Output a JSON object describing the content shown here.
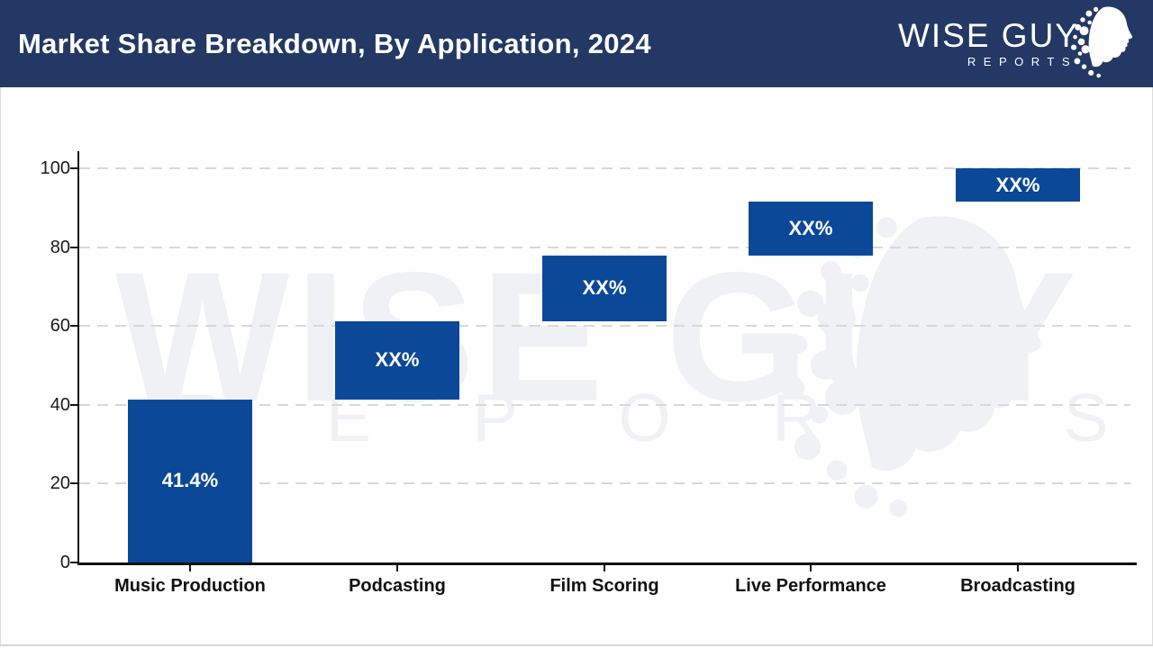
{
  "header": {
    "title": "Market Share Breakdown, By Application, 2024",
    "logo": {
      "line1": "WISE GUY",
      "line2": "REPORTS",
      "head_icon": "dotted-head-profile-icon"
    }
  },
  "watermark": {
    "line1": "WISE GUY",
    "line2": "R E P O R T S",
    "head_icon": "dotted-head-profile-watermark"
  },
  "colors": {
    "header_bg": "#233864",
    "bar": "#0c4898",
    "bar_label": "#ffffff",
    "grid": "#d8d8d8",
    "axis": "#111111",
    "watermark": "#f0f1f4"
  },
  "chart_data": {
    "type": "bar",
    "subtype": "waterfall",
    "title": "Market Share Breakdown, By Application, 2024",
    "categories": [
      "Music Production",
      "Podcasting",
      "Film Scoring",
      "Live Performance",
      "Broadcasting"
    ],
    "segments": [
      {
        "category": "Music Production",
        "start": 0,
        "end": 41.4,
        "value": 41.4,
        "label": "41.4%"
      },
      {
        "category": "Podcasting",
        "start": 41.4,
        "end": 61.2,
        "value": 19.8,
        "label": "XX%"
      },
      {
        "category": "Film Scoring",
        "start": 61.2,
        "end": 77.9,
        "value": 16.7,
        "label": "XX%"
      },
      {
        "category": "Live Performance",
        "start": 77.9,
        "end": 91.5,
        "value": 13.6,
        "label": "XX%"
      },
      {
        "category": "Broadcasting",
        "start": 91.5,
        "end": 100,
        "value": 8.5,
        "label": "XX%"
      }
    ],
    "ylim": [
      0,
      100
    ],
    "yticks": [
      0,
      20,
      40,
      60,
      80,
      100
    ],
    "xlabel": "",
    "ylabel": "",
    "grid": "horizontal-dashed",
    "legend": "none"
  }
}
